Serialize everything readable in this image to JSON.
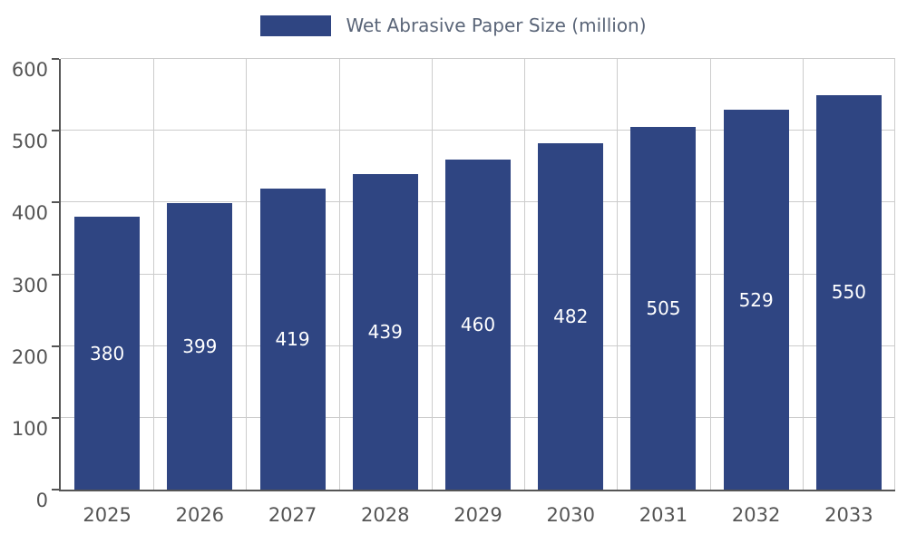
{
  "chart_data": {
    "type": "bar",
    "title": "Wet Abrasive Paper Size (million)",
    "categories": [
      "2025",
      "2026",
      "2027",
      "2028",
      "2029",
      "2030",
      "2031",
      "2032",
      "2033"
    ],
    "values": [
      380,
      399,
      419,
      439,
      460,
      482,
      505,
      529,
      550
    ],
    "xlabel": "",
    "ylabel": "",
    "ylim": [
      0,
      600
    ],
    "yticks": [
      0,
      100,
      200,
      300,
      400,
      500,
      600
    ],
    "grid": "on",
    "legend_position": "top-center",
    "data_labels": "inside-center-white"
  },
  "legend": {
    "label": "Wet Abrasive Paper Size (million)"
  },
  "colors": {
    "bar": "#2f4582",
    "grid": "#cccccc",
    "axis": "#555555",
    "tick_text": "#555555",
    "legend_text": "#5a6578",
    "bar_label_text": "#ffffff"
  }
}
